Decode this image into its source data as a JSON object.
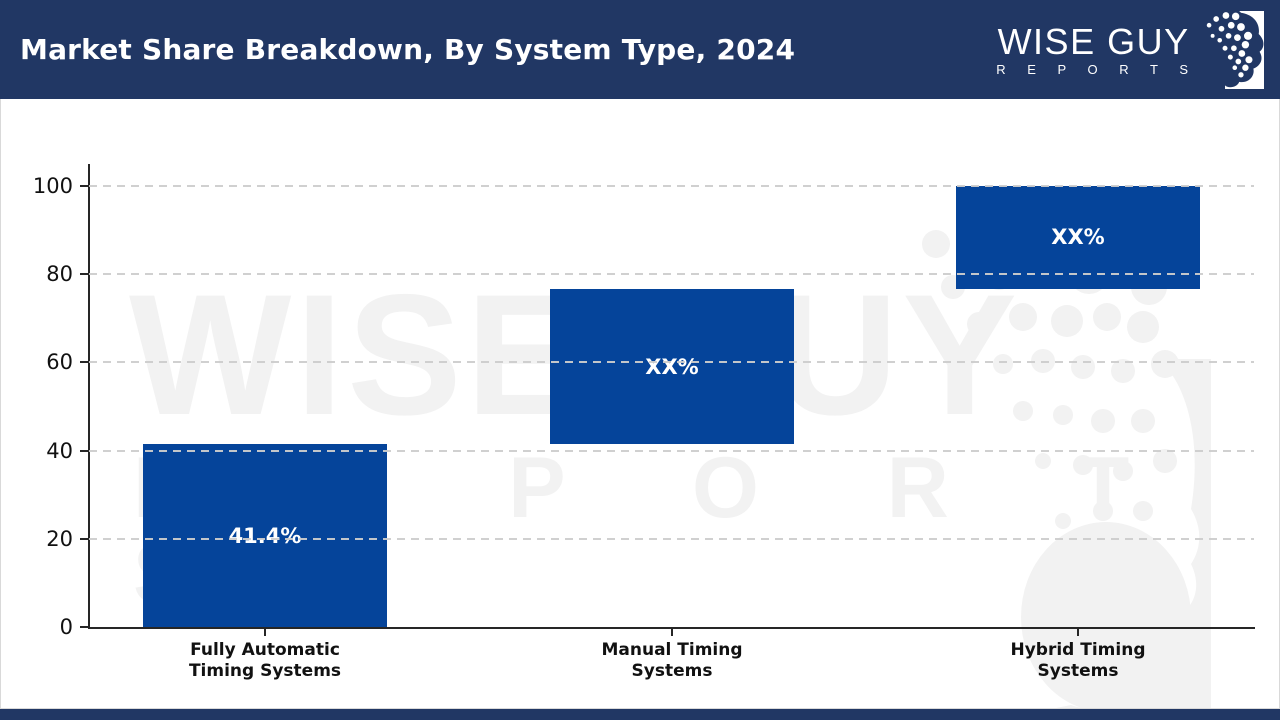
{
  "header": {
    "title": "Market Share Breakdown, By System Type, 2024",
    "logo": {
      "wordmark": "WISE GUY",
      "reports": "R E P O R T S"
    }
  },
  "watermark": {
    "wordmark": "WISE GUY",
    "reports": "R E P O R T S"
  },
  "chart_data": {
    "type": "bar",
    "subtype": "stacked-waterfall-percentage",
    "title": "Market Share Breakdown, By System Type, 2024",
    "categories": [
      [
        "Fully Automatic",
        "Timing Systems"
      ],
      [
        "Manual Timing",
        "Systems"
      ],
      [
        "Hybrid Timing",
        "Systems"
      ]
    ],
    "segments": [
      {
        "start": 0,
        "end": 41.4,
        "label": "41.4%"
      },
      {
        "start": 41.4,
        "end": 76.7,
        "label": "XX%"
      },
      {
        "start": 76.7,
        "end": 100,
        "label": "XX%"
      }
    ],
    "unit": "%",
    "ylim": [
      0,
      100
    ],
    "yticks": [
      0,
      20,
      40,
      60,
      80,
      100
    ],
    "xlabel": "",
    "ylabel": "",
    "grid": {
      "horizontal": true,
      "style": "dashed"
    },
    "legend": "none",
    "colors": {
      "bar": "#05449a",
      "grid": "#cdcdcd",
      "axis": "#262626",
      "bar_label": "#ffffff",
      "tick_label": "#111111"
    }
  },
  "colors": {
    "header_bg": "#213764",
    "footer_bg": "#213764",
    "content_border": "#d9d9d9",
    "watermark": "#f2f2f2",
    "title_text": "#ffffff"
  }
}
